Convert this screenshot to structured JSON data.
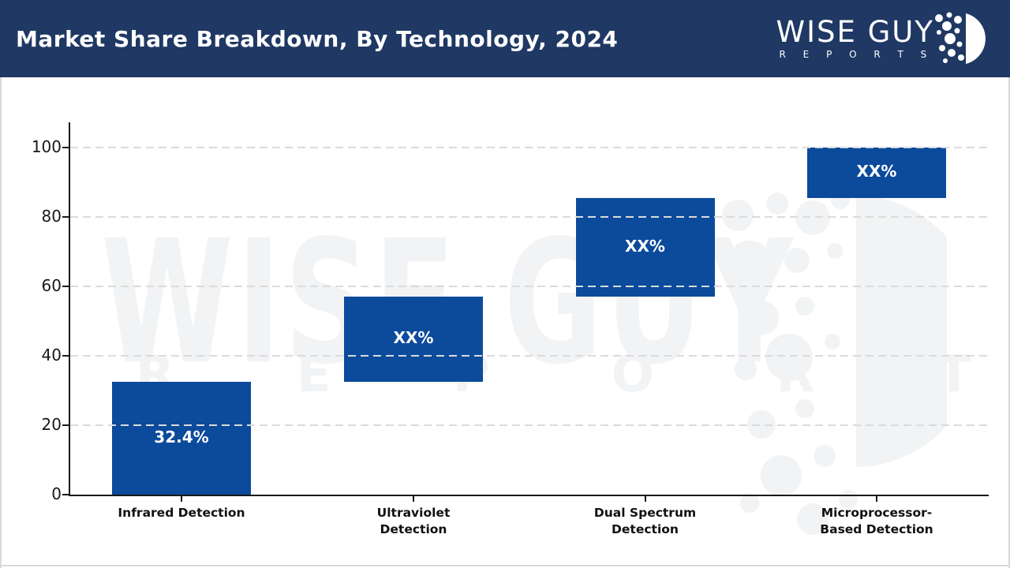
{
  "header": {
    "title": "Market Share Breakdown, By Technology, 2024",
    "logo_line1": "WISE GUY",
    "logo_line2": "R E P O R T S",
    "bg_color": "#1F3864"
  },
  "watermark": {
    "line1": "WISE GUY",
    "line2": "R E P O R T S"
  },
  "chart_data": {
    "type": "bar",
    "subtype": "waterfall",
    "title": "Market Share Breakdown, By Technology, 2024",
    "categories": [
      [
        "Infrared Detection"
      ],
      [
        "Ultraviolet",
        "Detection"
      ],
      [
        "Dual Spectrum",
        "Detection"
      ],
      [
        "Microprocessor-",
        "Based Detection"
      ]
    ],
    "segments": [
      {
        "start": 0,
        "end": 32.4,
        "label": "32.4%"
      },
      {
        "start": 32.4,
        "end": 57,
        "label": "XX%"
      },
      {
        "start": 57,
        "end": 85.5,
        "label": "XX%"
      },
      {
        "start": 85.5,
        "end": 100,
        "label": "XX%"
      }
    ],
    "yticks": [
      0,
      20,
      40,
      60,
      80,
      100
    ],
    "ylim": [
      0,
      105
    ],
    "xlabel": "",
    "ylabel": "",
    "bar_color": "#0C4A9C",
    "grid": "horizontal-dashed",
    "legend": "none"
  }
}
